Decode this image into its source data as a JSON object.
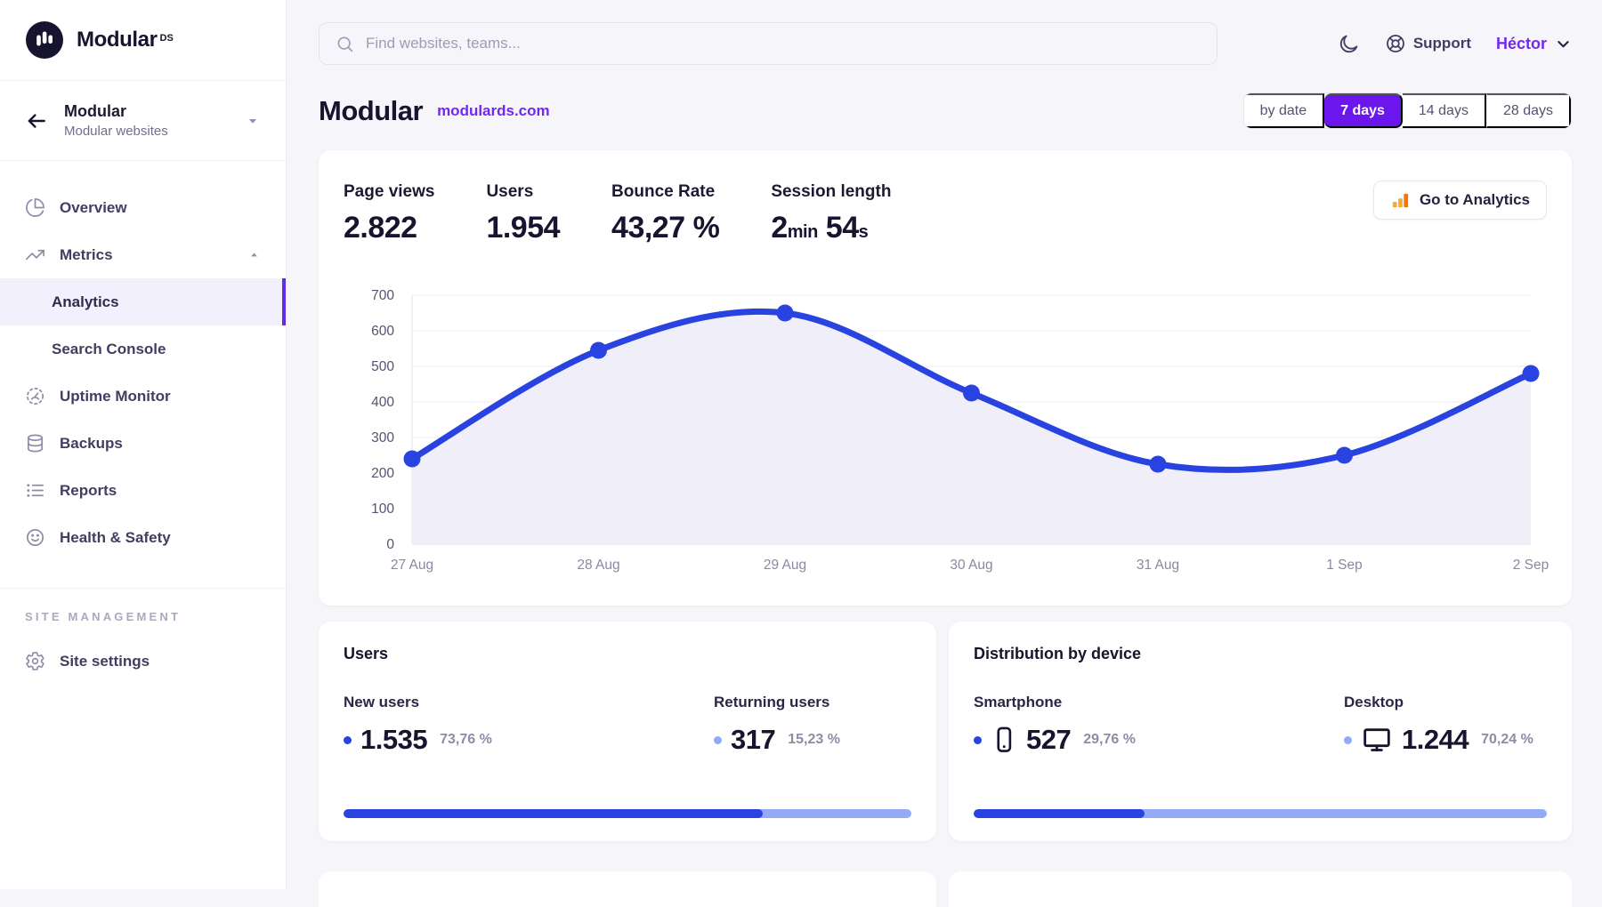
{
  "app": {
    "brand": "Modular",
    "brand_suffix": "DS"
  },
  "sidebar": {
    "team": {
      "name": "Modular",
      "subtitle": "Modular websites"
    },
    "items": [
      {
        "label": "Overview",
        "icon": "pie",
        "sub": false,
        "active": false,
        "caret": null
      },
      {
        "label": "Metrics",
        "icon": "trend",
        "sub": false,
        "active": false,
        "caret": "up"
      },
      {
        "label": "Analytics",
        "icon": null,
        "sub": true,
        "active": true,
        "caret": null
      },
      {
        "label": "Search Console",
        "icon": null,
        "sub": true,
        "active": false,
        "caret": null
      },
      {
        "label": "Uptime Monitor",
        "icon": "gauge",
        "sub": false,
        "active": false,
        "caret": null
      },
      {
        "label": "Backups",
        "icon": "db",
        "sub": false,
        "active": false,
        "caret": null
      },
      {
        "label": "Reports",
        "icon": "list",
        "sub": false,
        "active": false,
        "caret": null
      },
      {
        "label": "Health & Safety",
        "icon": "smile",
        "sub": false,
        "active": false,
        "caret": null
      }
    ],
    "section_label": "SITE MANAGEMENT",
    "settings_label": "Site settings"
  },
  "topbar": {
    "search_placeholder": "Find websites, teams...",
    "support_label": "Support",
    "user_name": "Héctor"
  },
  "header": {
    "site_name": "Modular",
    "site_url": "modulards.com",
    "ranges": [
      "by date",
      "7 days",
      "14 days",
      "28 days"
    ],
    "active_range": "7 days"
  },
  "stats": [
    {
      "label": "Page views",
      "parts": [
        {
          "t": "2.822",
          "small": false,
          "gap": false
        }
      ]
    },
    {
      "label": "Users",
      "parts": [
        {
          "t": "1.954",
          "small": false,
          "gap": false
        }
      ]
    },
    {
      "label": "Bounce Rate",
      "parts": [
        {
          "t": "43,27 %",
          "small": false,
          "gap": false
        }
      ]
    },
    {
      "label": "Session length",
      "parts": [
        {
          "t": "2",
          "small": false,
          "gap": false
        },
        {
          "t": "min",
          "small": true,
          "gap": false
        },
        {
          "t": "54",
          "small": false,
          "gap": true
        },
        {
          "t": "s",
          "small": true,
          "gap": false
        }
      ]
    }
  ],
  "analytics_button": {
    "label": "Go to Analytics"
  },
  "chart_data": {
    "type": "line",
    "series_name": "Page views",
    "x": [
      "27 Aug",
      "28 Aug",
      "29 Aug",
      "30 Aug",
      "31 Aug",
      "1 Sep",
      "2 Sep"
    ],
    "values": [
      240,
      545,
      650,
      425,
      225,
      250,
      480
    ],
    "ylim": [
      0,
      700
    ],
    "ytick_step": 100,
    "grid": true,
    "legend": "none"
  },
  "users_card": {
    "title": "Users",
    "metrics": [
      {
        "label": "New users",
        "value": "1.535",
        "pct": "73,76 %",
        "dot": "#2843DF",
        "icon": null
      },
      {
        "label": "Returning users",
        "value": "317",
        "pct": "15,23 %",
        "dot": "#93AAF6",
        "icon": null
      }
    ],
    "progress_pct": 73.76
  },
  "device_card": {
    "title": "Distribution by device",
    "metrics": [
      {
        "label": "Smartphone",
        "value": "527",
        "pct": "29,76 %",
        "dot": "#2843DF",
        "icon": "phone"
      },
      {
        "label": "Desktop",
        "value": "1.244",
        "pct": "70,24 %",
        "dot": "#93AAF6",
        "icon": "monitor"
      }
    ],
    "progress_pct": 29.76
  },
  "colors": {
    "accent_purple": "#6C16EE",
    "link_purple": "#7426F3",
    "chart_line": "#2843DF",
    "chart_fill": "#EFEEF9",
    "chart_grid": "#EEEEF5",
    "bar_dark": "#2843DF",
    "bar_light": "#93AAF6",
    "text_dark": "#16142E",
    "text_muted": "#8E8CA6",
    "ga_orange_light": "#FBAB2D",
    "ga_orange_dark": "#F2770C"
  }
}
